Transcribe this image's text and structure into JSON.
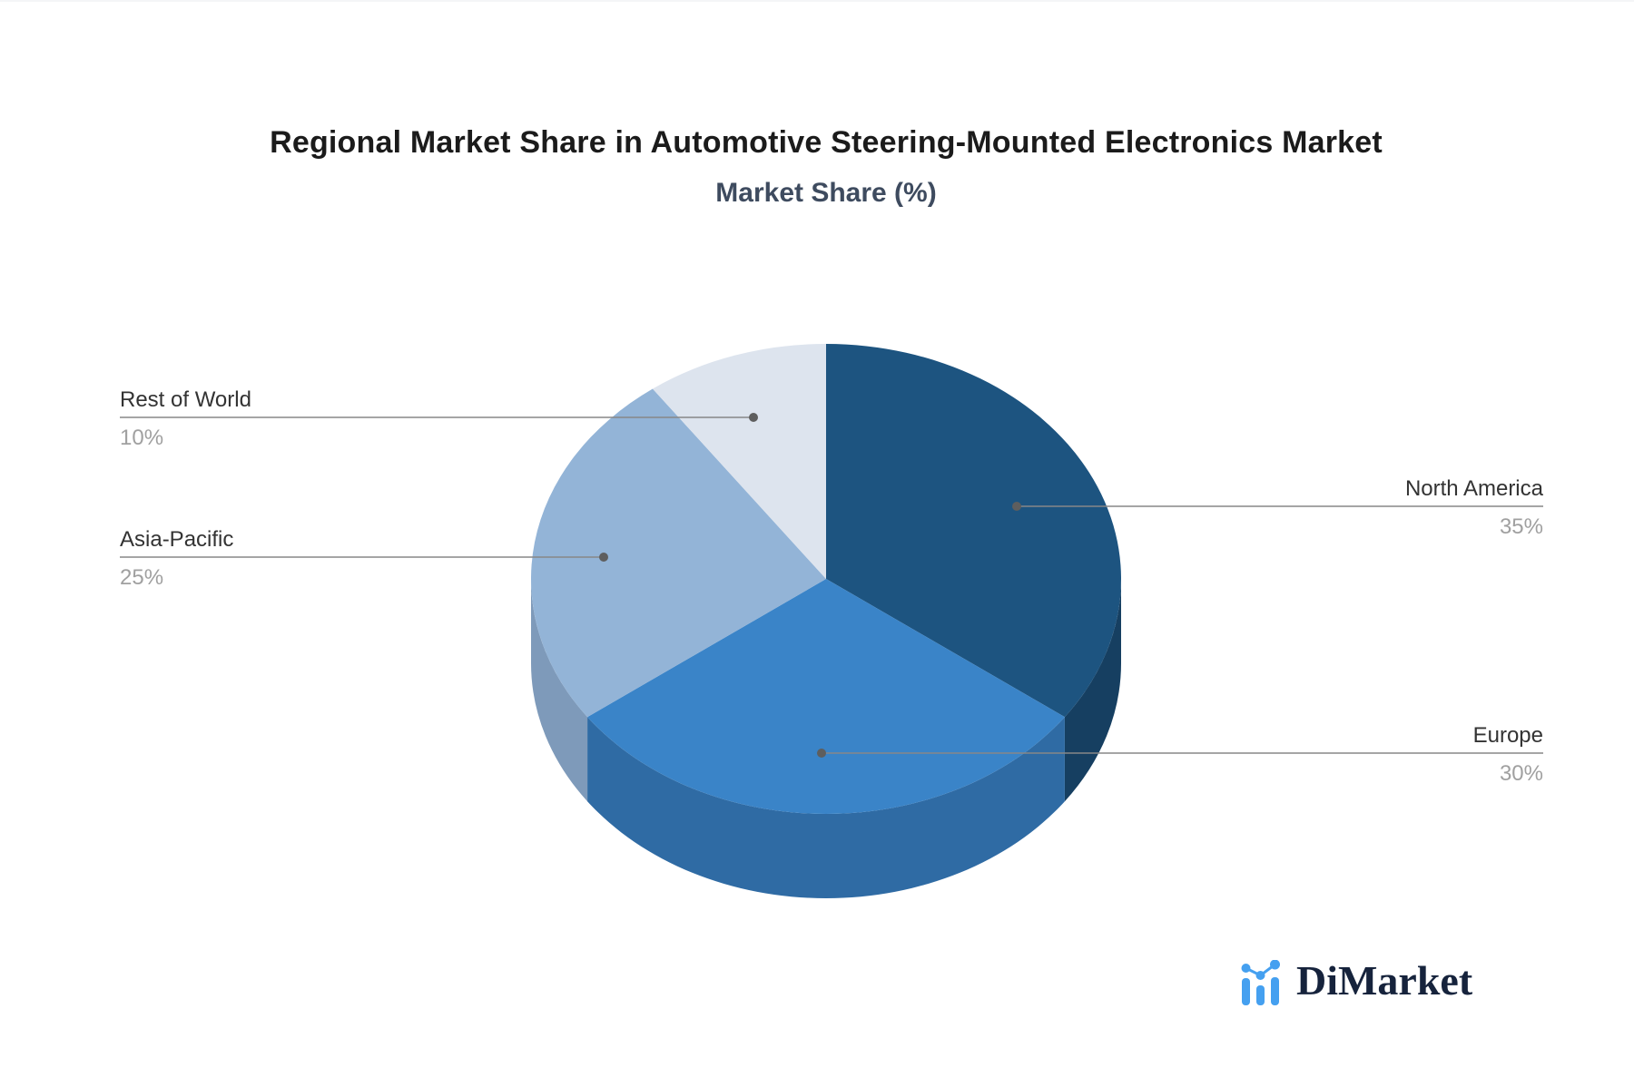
{
  "chart_data": {
    "type": "pie",
    "effect": "3d",
    "title": "Regional Market Share in Automotive Steering-Mounted Electronics Market",
    "subtitle": "Market Share (%)",
    "unit": "%",
    "start_angle": "top",
    "direction": "clockwise",
    "legend": "none",
    "slices": [
      {
        "label": "North America",
        "value": 35,
        "pct_label": "35%",
        "color": "#1d5480",
        "side_color": "#163f61",
        "callout_side": "right"
      },
      {
        "label": "Europe",
        "value": 30,
        "pct_label": "30%",
        "color": "#3a84c8",
        "side_color": "#2f6ba4",
        "callout_side": "right"
      },
      {
        "label": "Asia-Pacific",
        "value": 25,
        "pct_label": "25%",
        "color": "#93b4d7",
        "side_color": "#7e9aba",
        "callout_side": "left"
      },
      {
        "label": "Rest of World",
        "value": 10,
        "pct_label": "10%",
        "color": "#dde4ee",
        "callout_side": "left"
      }
    ],
    "title_color": "#1b1b1b",
    "subtitle_color": "#3e4b5f",
    "label_color": "#333333",
    "pct_color": "#a0a0a0",
    "callout_line_color": "#878787",
    "callout_dot_color": "#5e5e5e"
  },
  "branding": {
    "name": "DiMarket",
    "icon": "bar-line-chart-icon",
    "icon_color": "#45a0f0",
    "text_color": "#16233c"
  }
}
